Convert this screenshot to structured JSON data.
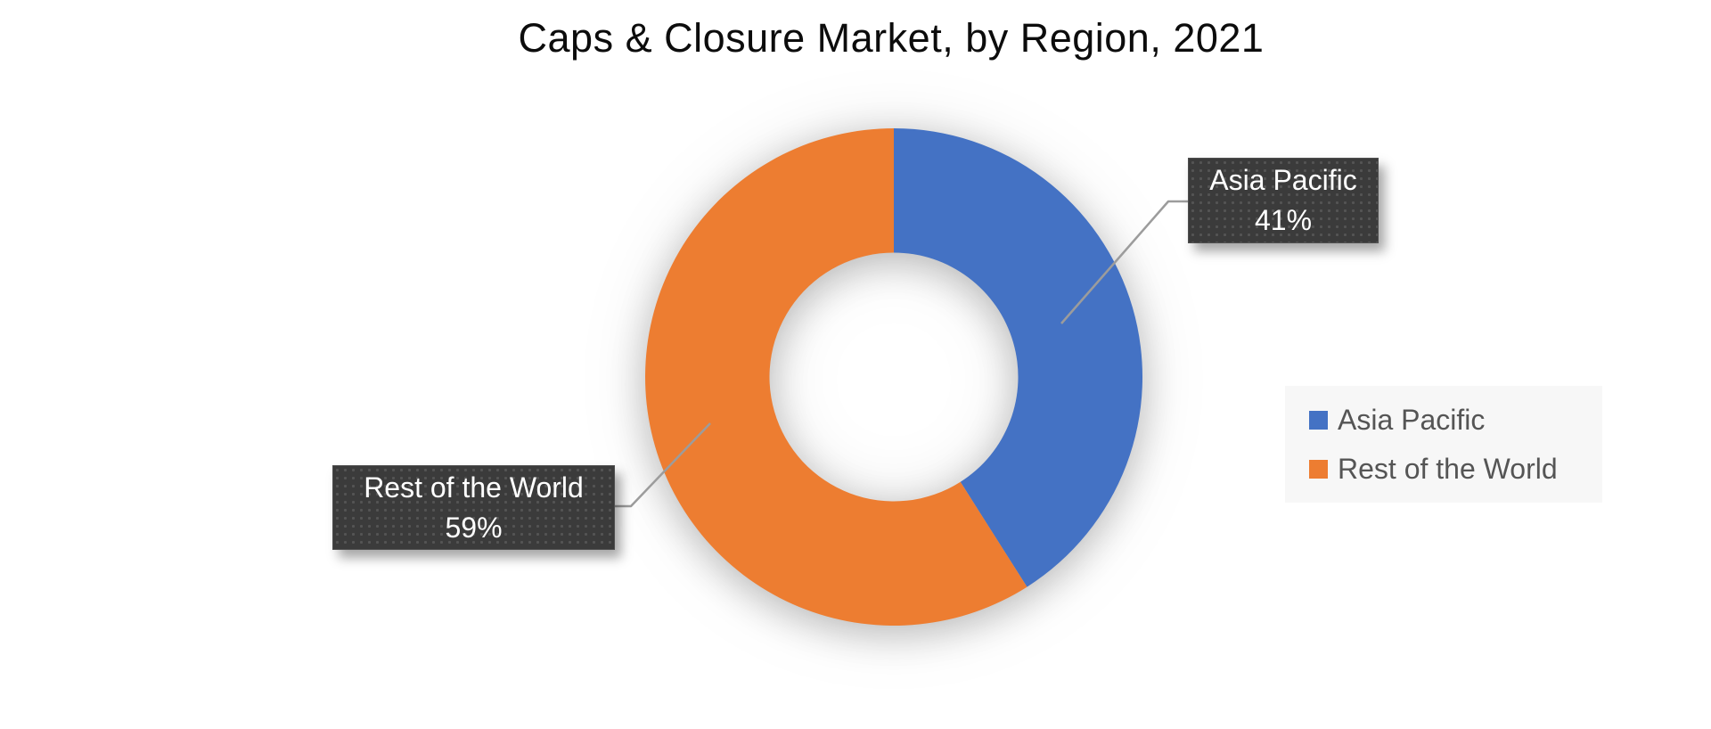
{
  "chart_data": {
    "type": "pie",
    "subtype": "donut",
    "title": "Caps & Closure Market, by Region, 2021",
    "categories": [
      "Asia Pacific",
      "Rest of the World"
    ],
    "values": [
      41,
      59
    ],
    "unit": "%",
    "colors": [
      "#4472C4",
      "#ED7D31"
    ],
    "start_angle_deg": 0,
    "direction": "clockwise",
    "inner_radius_ratio": 0.5,
    "legend_position": "right",
    "data_labels": [
      {
        "text": "Asia Pacific",
        "value": "41%"
      },
      {
        "text": "Rest of the World",
        "value": "59%"
      }
    ]
  },
  "legend": {
    "items": [
      {
        "label": "Asia Pacific",
        "color": "#4472C4"
      },
      {
        "label": "Rest of the World",
        "color": "#ED7D31"
      }
    ]
  },
  "style": {
    "callout_bg": "#3b3b3b",
    "callout_text": "#ffffff",
    "leader_line": "#9c9c9c",
    "legend_bg": "#f7f7f7",
    "legend_text": "#555555",
    "background": "#ffffff"
  }
}
